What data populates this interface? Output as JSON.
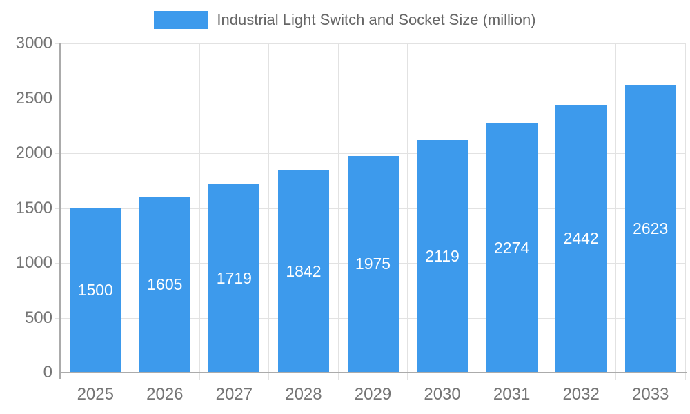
{
  "legend": {
    "label": "Industrial Light Switch and Socket Size (million)",
    "swatch_color": "#3d9aec"
  },
  "chart_data": {
    "type": "bar",
    "title": "Industrial Light Switch and Socket Size (million)",
    "series_name": "Industrial Light Switch and Socket Size (million)",
    "categories": [
      "2025",
      "2026",
      "2027",
      "2028",
      "2029",
      "2030",
      "2031",
      "2032",
      "2033"
    ],
    "values": [
      1500,
      1605,
      1719,
      1842,
      1975,
      2119,
      2274,
      2442,
      2623
    ],
    "xlabel": "",
    "ylabel": "",
    "ylim": [
      0,
      3000
    ],
    "yticks": [
      0,
      500,
      1000,
      1500,
      2000,
      2500,
      3000
    ],
    "grid": true,
    "legend_position": "top",
    "colors": {
      "bar": "#3d9aec",
      "value_label": "#ffffff",
      "axis_text": "#757575",
      "legend_text": "#666666",
      "gridline": "#e2e2e2",
      "axis_line": "#ababab",
      "background": "#ffffff"
    }
  }
}
